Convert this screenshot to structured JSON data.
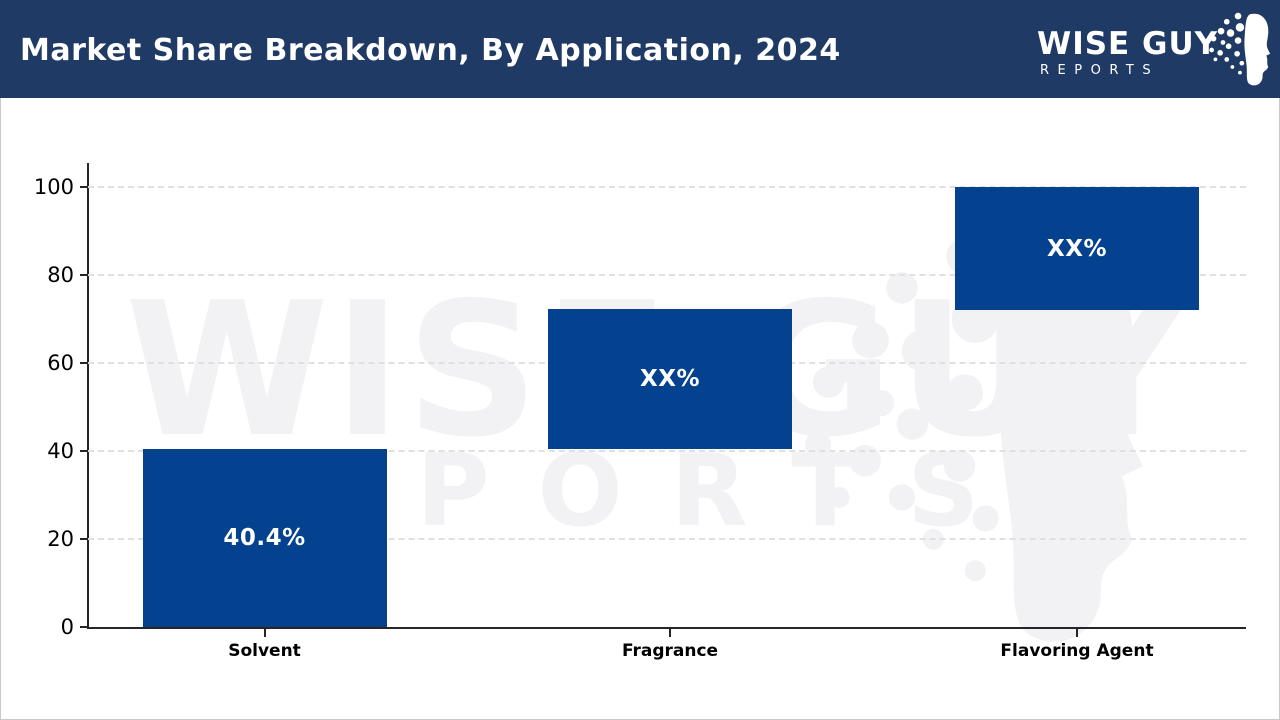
{
  "header": {
    "title": "Market Share Breakdown, By Application, 2024",
    "logo": {
      "line1": "WISE GUY",
      "line2": "REPORTS"
    }
  },
  "watermark": {
    "line1": "WISE GUY",
    "line2": "REPORTS"
  },
  "colors": {
    "header_navy": "#1f3a64",
    "bar_blue": "#04418f",
    "watermark_gray": "#f2f2f4",
    "gridline_gray": "#e0e0e0"
  },
  "chart_data": {
    "type": "bar",
    "subtype": "waterfall",
    "title": "Market Share Breakdown, By Application, 2024",
    "categories": [
      "Solvent",
      "Fragrance",
      "Flavoring Agent"
    ],
    "bars": [
      {
        "category": "Solvent",
        "start": 0,
        "end": 40.4,
        "label": "40.4%"
      },
      {
        "category": "Fragrance",
        "start": 40.4,
        "end": 72.3,
        "label": "XX%"
      },
      {
        "category": "Flavoring Agent",
        "start": 72,
        "end": 100,
        "label": "XX%"
      }
    ],
    "ylim": [
      0,
      100
    ],
    "yticks": [
      0,
      20,
      40,
      60,
      80,
      100
    ],
    "grid": "horizontal dashed",
    "legend": "none",
    "bar_color": "#04418f",
    "bar_label_color": "#ffffff"
  }
}
